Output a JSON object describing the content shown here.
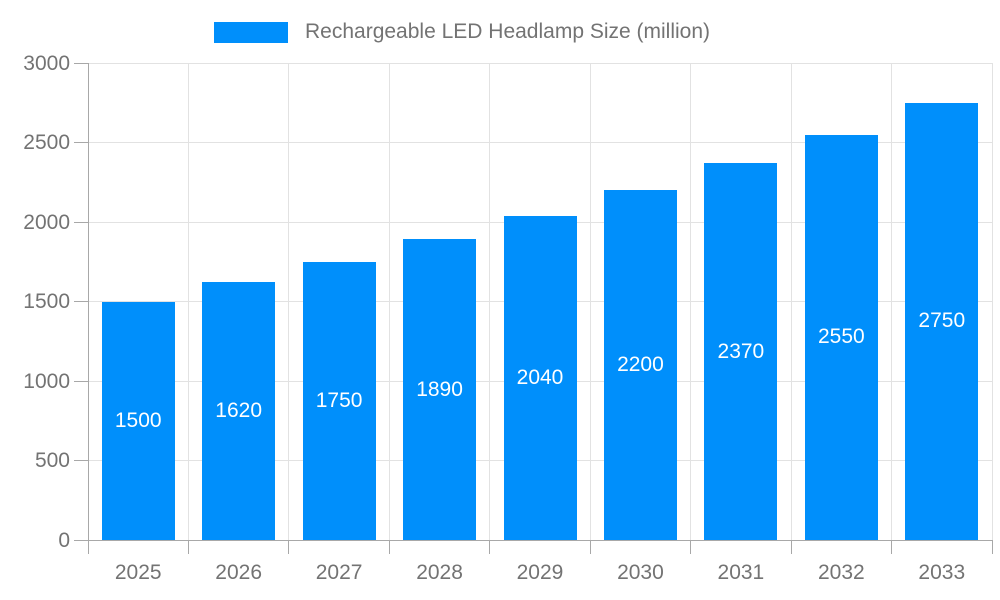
{
  "chart_data": {
    "type": "bar",
    "title": "Rechargeable LED Headlamp Size (million)",
    "legend": {
      "label": "Rechargeable LED Headlamp Size (million)",
      "position": "top"
    },
    "categories": [
      "2025",
      "2026",
      "2027",
      "2028",
      "2029",
      "2030",
      "2031",
      "2032",
      "2033"
    ],
    "values": [
      1500,
      1620,
      1750,
      1890,
      2040,
      2200,
      2370,
      2550,
      2750
    ],
    "bar_value_labels": [
      "1500",
      "1620",
      "1750",
      "1890",
      "2040",
      "2200",
      "2370",
      "2550",
      "2750"
    ],
    "ylim": [
      0,
      3000
    ],
    "yticks": [
      0,
      500,
      1000,
      1500,
      2000,
      2500,
      3000
    ],
    "ytick_labels": [
      "0",
      "500",
      "1000",
      "1500",
      "2000",
      "2500",
      "3000"
    ],
    "grid": true,
    "bar_label_position": "inside-center",
    "colors": {
      "bar": "#008FFB",
      "grid": "#e2e2e2",
      "axis": "#a8a8a8",
      "text": "#737373",
      "bar_label": "#ffffff",
      "background": "#ffffff"
    }
  }
}
